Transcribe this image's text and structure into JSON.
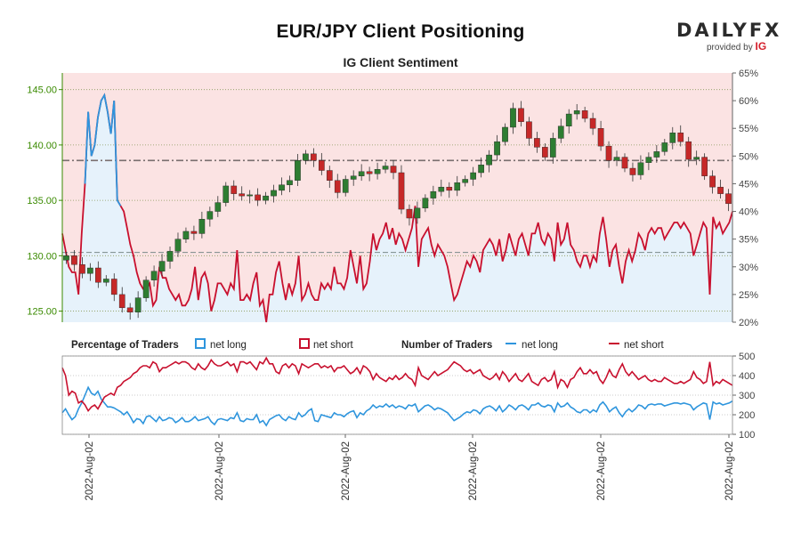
{
  "header": {
    "title": "EUR/JPY Client Positioning",
    "subtitle": "IG Client Sentiment",
    "brand": "DAILYFX",
    "brand_sub": "provided by",
    "brand_sub_mark": "IG"
  },
  "legend": {
    "pct_title": "Percentage of Traders",
    "pct_long": "net long",
    "pct_short": "net short",
    "num_title": "Number of Traders",
    "num_long": "net long",
    "num_short": "net short"
  },
  "colors": {
    "long": "#2e95dd",
    "short": "#c8102e",
    "candle_up": "#2e7d32",
    "candle_down": "#c62828",
    "price_axis": "#3a8a00",
    "upper_fill": "#fbe3e3",
    "lower_fill": "#e6f2fb"
  },
  "chart_data": [
    {
      "type": "candlestick",
      "name": "price",
      "ylim": [
        124.0,
        146.5
      ],
      "yticks": [
        125.0,
        130.0,
        135.0,
        140.0,
        145.0
      ],
      "ytick_labels": [
        "125.00",
        "130.00",
        "135.00",
        "140.00",
        "145.00"
      ],
      "reference_lines": {
        "dashdot": 138.6,
        "dashed_lower": 130.3
      },
      "close": [
        130.0,
        129.2,
        128.4,
        128.9,
        127.6,
        127.9,
        126.5,
        125.3,
        124.9,
        126.2,
        127.8,
        128.6,
        129.5,
        130.4,
        131.5,
        132.2,
        132.0,
        133.3,
        134.0,
        134.8,
        136.3,
        135.6,
        135.4,
        135.5,
        135.0,
        135.4,
        135.9,
        136.4,
        136.8,
        138.6,
        139.2,
        138.6,
        137.7,
        136.8,
        135.7,
        136.9,
        137.2,
        137.6,
        137.4,
        137.8,
        138.1,
        137.5,
        134.2,
        133.4,
        134.3,
        135.2,
        135.8,
        136.2,
        135.9,
        136.6,
        136.9,
        137.5,
        138.2,
        139.1,
        140.3,
        141.6,
        143.3,
        142.1,
        140.6,
        139.8,
        138.9,
        140.6,
        141.7,
        142.8,
        143.1,
        142.4,
        141.5,
        139.9,
        138.6,
        138.9,
        137.9,
        137.3,
        138.4,
        138.9,
        139.4,
        140.2,
        141.1,
        140.3,
        138.7,
        138.9,
        137.2,
        136.2,
        135.6,
        134.7
      ],
      "annotation": "close values estimated by reading candle bodies against the price axis"
    },
    {
      "type": "line",
      "name": "net long %",
      "ylim": [
        20,
        65
      ],
      "yticks": [
        20,
        25,
        30,
        35,
        40,
        45,
        50,
        55,
        60,
        65
      ],
      "ytick_labels": [
        "20%",
        "25%",
        "30%",
        "35%",
        "40%",
        "45%",
        "50%",
        "55%",
        "60%",
        "65%"
      ],
      "values": [
        36,
        33,
        30,
        29,
        29,
        25,
        36,
        45,
        58,
        50,
        52,
        57,
        60,
        61,
        58,
        54,
        60,
        42,
        41,
        40,
        37,
        34,
        32,
        29,
        27,
        26,
        26,
        27,
        23,
        24,
        30,
        28,
        28,
        26,
        25,
        24,
        25,
        23,
        23,
        24,
        26,
        30,
        24,
        28,
        29,
        27,
        22,
        24,
        27,
        27,
        26,
        25,
        27,
        26,
        33,
        24,
        24,
        25,
        24,
        27,
        29,
        23,
        24,
        20,
        25,
        25,
        29,
        31,
        27,
        24,
        27,
        25,
        27,
        32,
        24,
        25,
        27,
        25,
        24,
        24,
        27,
        26,
        27,
        26,
        30,
        27,
        27,
        26,
        28,
        33,
        30,
        27,
        32,
        26,
        27,
        31,
        36,
        33,
        35,
        36,
        38,
        35,
        37,
        34,
        36,
        35,
        33,
        35,
        37,
        41,
        30,
        35,
        36,
        37,
        34,
        32,
        34,
        33,
        32,
        30,
        27,
        24,
        25,
        27,
        29,
        31,
        30,
        32,
        31,
        29,
        33,
        34,
        35,
        34,
        32,
        35,
        31,
        33,
        36,
        34,
        32,
        35,
        36,
        34,
        32,
        36,
        36,
        38,
        35,
        34,
        36,
        35,
        31,
        38,
        34,
        35,
        38,
        34,
        33,
        31,
        30,
        32,
        32,
        30,
        32,
        31,
        36,
        39,
        35,
        30,
        33,
        34,
        30,
        27,
        31,
        33,
        31,
        33,
        36,
        35,
        33,
        36,
        37,
        36,
        37,
        37,
        35,
        36,
        37,
        38,
        38,
        37,
        38,
        37,
        36,
        32,
        34,
        36,
        38,
        37,
        25,
        39,
        37,
        38,
        36,
        37,
        38,
        40
      ],
      "annotation": "net short % = 100 - net long %"
    },
    {
      "type": "line",
      "name": "number of traders",
      "ylim": [
        100,
        500
      ],
      "yticks": [
        100,
        200,
        300,
        400,
        500
      ],
      "series": [
        {
          "name": "net long",
          "values": [
            210,
            230,
            200,
            175,
            190,
            230,
            260,
            300,
            340,
            310,
            300,
            320,
            280,
            260,
            240,
            240,
            235,
            225,
            215,
            200,
            215,
            190,
            160,
            180,
            175,
            155,
            190,
            195,
            180,
            165,
            190,
            170,
            175,
            185,
            180,
            160,
            170,
            185,
            165,
            165,
            175,
            190,
            170,
            175,
            180,
            190,
            165,
            150,
            175,
            180,
            175,
            170,
            185,
            180,
            210,
            170,
            165,
            180,
            175,
            175,
            200,
            160,
            170,
            145,
            175,
            185,
            195,
            200,
            180,
            170,
            190,
            180,
            175,
            210,
            190,
            200,
            220,
            230,
            170,
            165,
            200,
            195,
            190,
            185,
            210,
            200,
            200,
            190,
            205,
            215,
            220,
            185,
            210,
            200,
            220,
            230,
            250,
            235,
            245,
            240,
            255,
            240,
            250,
            235,
            245,
            240,
            230,
            250,
            245,
            255,
            215,
            230,
            245,
            250,
            240,
            225,
            235,
            230,
            220,
            210,
            190,
            170,
            180,
            190,
            205,
            215,
            210,
            225,
            220,
            205,
            230,
            240,
            245,
            235,
            220,
            245,
            215,
            230,
            250,
            240,
            225,
            245,
            250,
            240,
            225,
            250,
            250,
            260,
            245,
            240,
            250,
            245,
            215,
            260,
            240,
            245,
            260,
            240,
            230,
            215,
            210,
            225,
            225,
            210,
            225,
            215,
            250,
            265,
            245,
            215,
            230,
            240,
            210,
            190,
            215,
            230,
            215,
            230,
            250,
            245,
            230,
            250,
            255,
            250,
            255,
            255,
            245,
            250,
            255,
            260,
            260,
            255,
            260,
            255,
            250,
            225,
            240,
            250,
            260,
            255,
            175,
            265,
            255,
            260,
            250,
            255,
            260,
            270
          ]
        },
        {
          "name": "net short",
          "values": [
            440,
            400,
            300,
            320,
            310,
            260,
            270,
            250,
            220,
            240,
            250,
            230,
            260,
            290,
            300,
            310,
            300,
            340,
            350,
            370,
            380,
            390,
            410,
            420,
            440,
            450,
            450,
            440,
            470,
            460,
            420,
            440,
            440,
            450,
            460,
            470,
            460,
            470,
            470,
            460,
            440,
            430,
            460,
            440,
            430,
            450,
            480,
            460,
            450,
            450,
            460,
            470,
            450,
            460,
            420,
            470,
            470,
            460,
            470,
            450,
            430,
            470,
            460,
            490,
            460,
            460,
            420,
            410,
            450,
            460,
            440,
            460,
            450,
            410,
            460,
            450,
            440,
            450,
            460,
            460,
            440,
            450,
            440,
            450,
            420,
            440,
            440,
            450,
            430,
            410,
            420,
            440,
            410,
            450,
            440,
            420,
            380,
            410,
            390,
            380,
            370,
            390,
            380,
            400,
            380,
            390,
            410,
            390,
            380,
            350,
            440,
            400,
            390,
            380,
            400,
            420,
            400,
            410,
            420,
            430,
            450,
            470,
            460,
            450,
            430,
            420,
            430,
            410,
            420,
            430,
            400,
            390,
            380,
            390,
            410,
            380,
            420,
            400,
            370,
            390,
            410,
            380,
            370,
            390,
            410,
            370,
            360,
            350,
            380,
            390,
            370,
            380,
            420,
            340,
            380,
            370,
            340,
            380,
            390,
            420,
            440,
            410,
            410,
            430,
            410,
            420,
            380,
            360,
            390,
            430,
            400,
            390,
            430,
            460,
            420,
            400,
            420,
            400,
            380,
            390,
            400,
            380,
            370,
            380,
            370,
            370,
            390,
            380,
            370,
            360,
            360,
            370,
            360,
            370,
            380,
            420,
            390,
            380,
            360,
            370,
            470,
            350,
            370,
            360,
            380,
            370,
            360,
            350
          ]
        }
      ]
    }
  ],
  "x_axis": {
    "tick_labels": [
      "2022-Aug-02",
      "2022-Aug-02",
      "2022-Aug-02",
      "2022-Aug-02",
      "2022-Aug-02",
      "2022-Aug-02"
    ]
  }
}
